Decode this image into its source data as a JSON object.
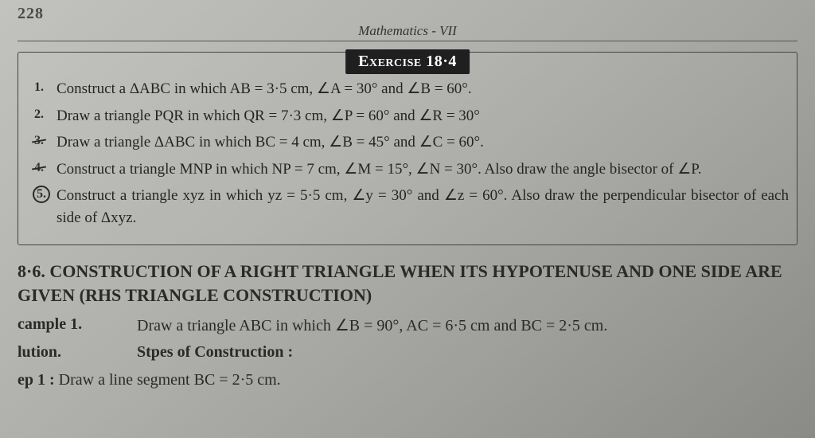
{
  "page_number": "228",
  "subject_header": "Mathematics - VII",
  "exercise": {
    "badge": "Exercise 18·4",
    "items": [
      {
        "num": "1.",
        "style": "plain",
        "text": "Construct a ΔABC in which AB = 3·5 cm, ∠A = 30° and ∠B = 60°."
      },
      {
        "num": "2.",
        "style": "plain",
        "text": "Draw a triangle PQR in which QR = 7·3 cm, ∠P = 60° and ∠R = 30°"
      },
      {
        "num": "3.",
        "style": "strike",
        "text": "Draw a triangle ΔABC in which BC = 4 cm, ∠B = 45° and ∠C = 60°."
      },
      {
        "num": "4.",
        "style": "strike",
        "text": "Construct a triangle MNP in which NP = 7 cm, ∠M = 15°, ∠N = 30°. Also draw the angle bisector of ∠P."
      },
      {
        "num": "5.",
        "style": "circled",
        "text": "Construct a triangle xyz in which yz = 5·5 cm, ∠y = 30° and ∠z = 60°. Also draw the perpendicular bisector of each side of Δxyz."
      }
    ]
  },
  "section": {
    "title": "8·6. CONSTRUCTION OF A RIGHT TRIANGLE WHEN ITS HYPOTENUSE AND ONE SIDE ARE GIVEN (RHS TRIANGLE CONSTRUCTION)"
  },
  "example": {
    "label": "cample 1.",
    "text": "Draw a triangle ABC in which ∠B = 90°, AC = 6·5 cm and BC = 2·5 cm."
  },
  "solution": {
    "label": "lution.",
    "steps_label": "Stpes of Construction :"
  },
  "step1": {
    "num": "ep 1  :",
    "text": "Draw a line segment BC = 2·5 cm."
  }
}
